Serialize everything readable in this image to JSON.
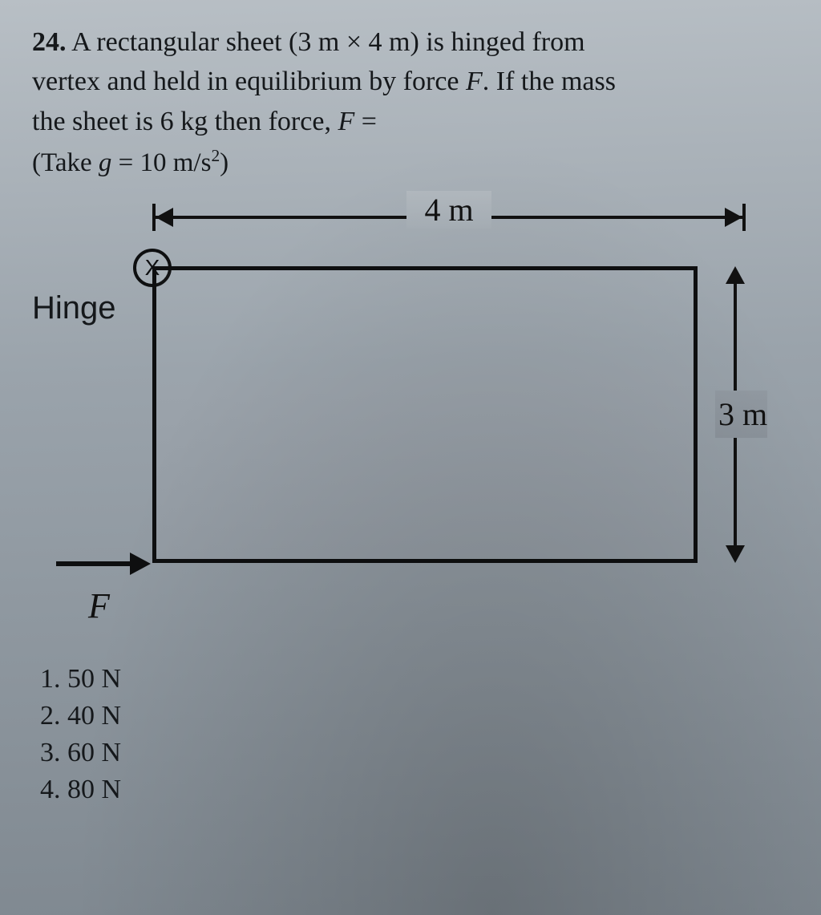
{
  "question": {
    "number": "24.",
    "line1_a": " A rectangular sheet (3 m × 4 m) is hinged from",
    "line2": "vertex and held in equilibrium by force ",
    "line2_b": ". If the mass",
    "line3_a": "the sheet is 6 kg then force, ",
    "line3_eq_lhs": "F",
    "line3_eq_rhs": " ="
  },
  "take": {
    "prefix": "(Take ",
    "g": "g",
    "mid": " = 10 m/s",
    "sup": "2",
    "suffix": ")"
  },
  "diagram": {
    "width_label": "4 m",
    "height_label": "3 m",
    "hinge_symbol": "X",
    "hinge_text": "Hinge",
    "force_label": "F",
    "colors": {
      "stroke": "#0e0f10",
      "text": "#15181b"
    }
  },
  "options": {
    "o1": "1. 50 N",
    "o2": "2. 40 N",
    "o3": "3. 60 N",
    "o4": "4. 80 N"
  }
}
